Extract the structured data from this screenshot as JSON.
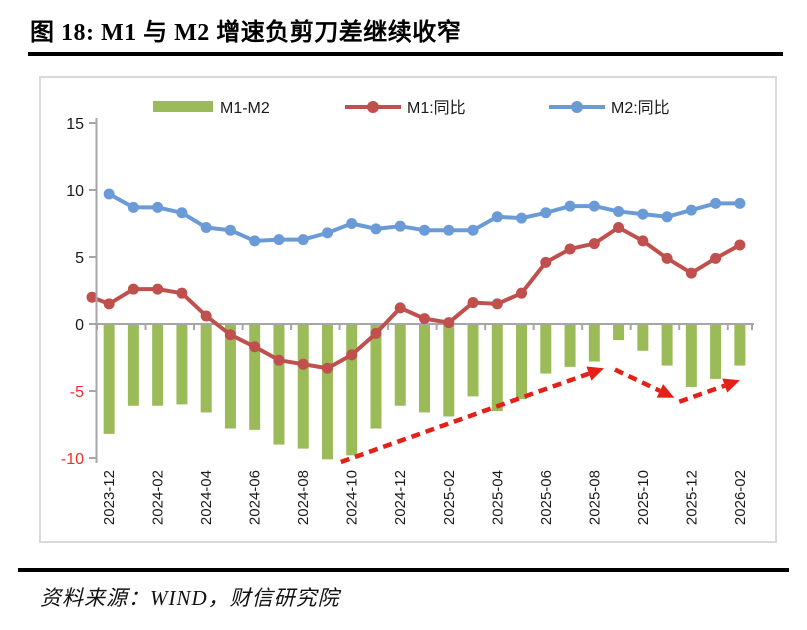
{
  "page": {
    "title": "图 18:  M1 与 M2 增速负剪刀差继续收窄",
    "source": "资料来源：WIND，财信研究院"
  },
  "chart_data": {
    "type": "bar",
    "subtype": "combo-bar-line",
    "title": "",
    "xlabel": "",
    "ylabel": "",
    "categories": [
      "2023-12",
      "2024-01",
      "2024-02",
      "2024-03",
      "2024-04",
      "2024-05",
      "2024-06",
      "2024-07",
      "2024-08",
      "2024-09",
      "2024-10",
      "2024-11",
      "2024-12",
      "2025-01",
      "2025-02",
      "2025-03",
      "2025-04",
      "2025-05",
      "2025-06",
      "2025-07",
      "2025-08",
      "2025-09",
      "2025-10",
      "2025-11",
      "2025-12",
      "2026-01",
      "2026-02"
    ],
    "x_tick_labels_shown": [
      "2023-12",
      "2024-02",
      "2024-04",
      "2024-06",
      "2024-08",
      "2024-10",
      "2024-12",
      "2025-02",
      "2025-04",
      "2025-06",
      "2025-08",
      "2025-10",
      "2025-12",
      "2026-02"
    ],
    "x_label_every": 2,
    "series": [
      {
        "name": "M1-M2",
        "type": "bar",
        "color": "#9BBB59",
        "values": [
          -8.2,
          -6.1,
          -6.1,
          -6.0,
          -6.6,
          -7.8,
          -7.9,
          -9.0,
          -9.3,
          -10.1,
          -9.8,
          -7.8,
          -6.1,
          -6.6,
          -6.9,
          -5.4,
          -6.5,
          -5.6,
          -3.7,
          -3.2,
          -2.8,
          -1.2,
          -2.0,
          -3.1,
          -4.7,
          -4.1,
          -3.1
        ]
      },
      {
        "name": "M1:同比",
        "type": "line",
        "color": "#C0504D",
        "values": [
          1.5,
          2.6,
          2.6,
          2.3,
          0.6,
          -0.8,
          -1.7,
          -2.7,
          -3.0,
          -3.3,
          -2.3,
          -0.7,
          1.2,
          0.4,
          0.1,
          1.6,
          1.5,
          2.3,
          4.6,
          5.6,
          6.0,
          7.2,
          6.2,
          4.9,
          3.8,
          4.9,
          5.9
        ]
      },
      {
        "name": "M2:同比",
        "type": "line",
        "color": "#6B9BD7",
        "values": [
          9.7,
          8.7,
          8.7,
          8.3,
          7.2,
          7.0,
          6.2,
          6.3,
          6.3,
          6.8,
          7.5,
          7.1,
          7.3,
          7.0,
          7.0,
          7.0,
          8.0,
          7.9,
          8.3,
          8.8,
          8.8,
          8.4,
          8.2,
          8.0,
          8.5,
          9.0,
          9.0
        ]
      }
    ],
    "ylim": [
      -10,
      15
    ],
    "y_ticks": [
      15,
      10,
      5,
      0,
      -5,
      -10
    ],
    "tick_label_color": "#1a1a1a",
    "negative_tick_color": "#EE3024",
    "axis_color": "#A6A6A6",
    "panel_border_color": "#D9D9D9",
    "grid": false,
    "legend_position": "top",
    "m1_leading_edge_value": 2.0,
    "annotation_arrows": [
      {
        "from_idx": 10.05,
        "from_val": -10.3,
        "to_idx": 20.9,
        "to_val": -3.3
      },
      {
        "from_idx": 21.35,
        "from_val": -3.4,
        "to_idx": 23.8,
        "to_val": -5.5
      },
      {
        "from_idx": 24.0,
        "from_val": -5.8,
        "to_idx": 26.5,
        "to_val": -4.2
      }
    ],
    "arrow_color": "#E32119"
  }
}
